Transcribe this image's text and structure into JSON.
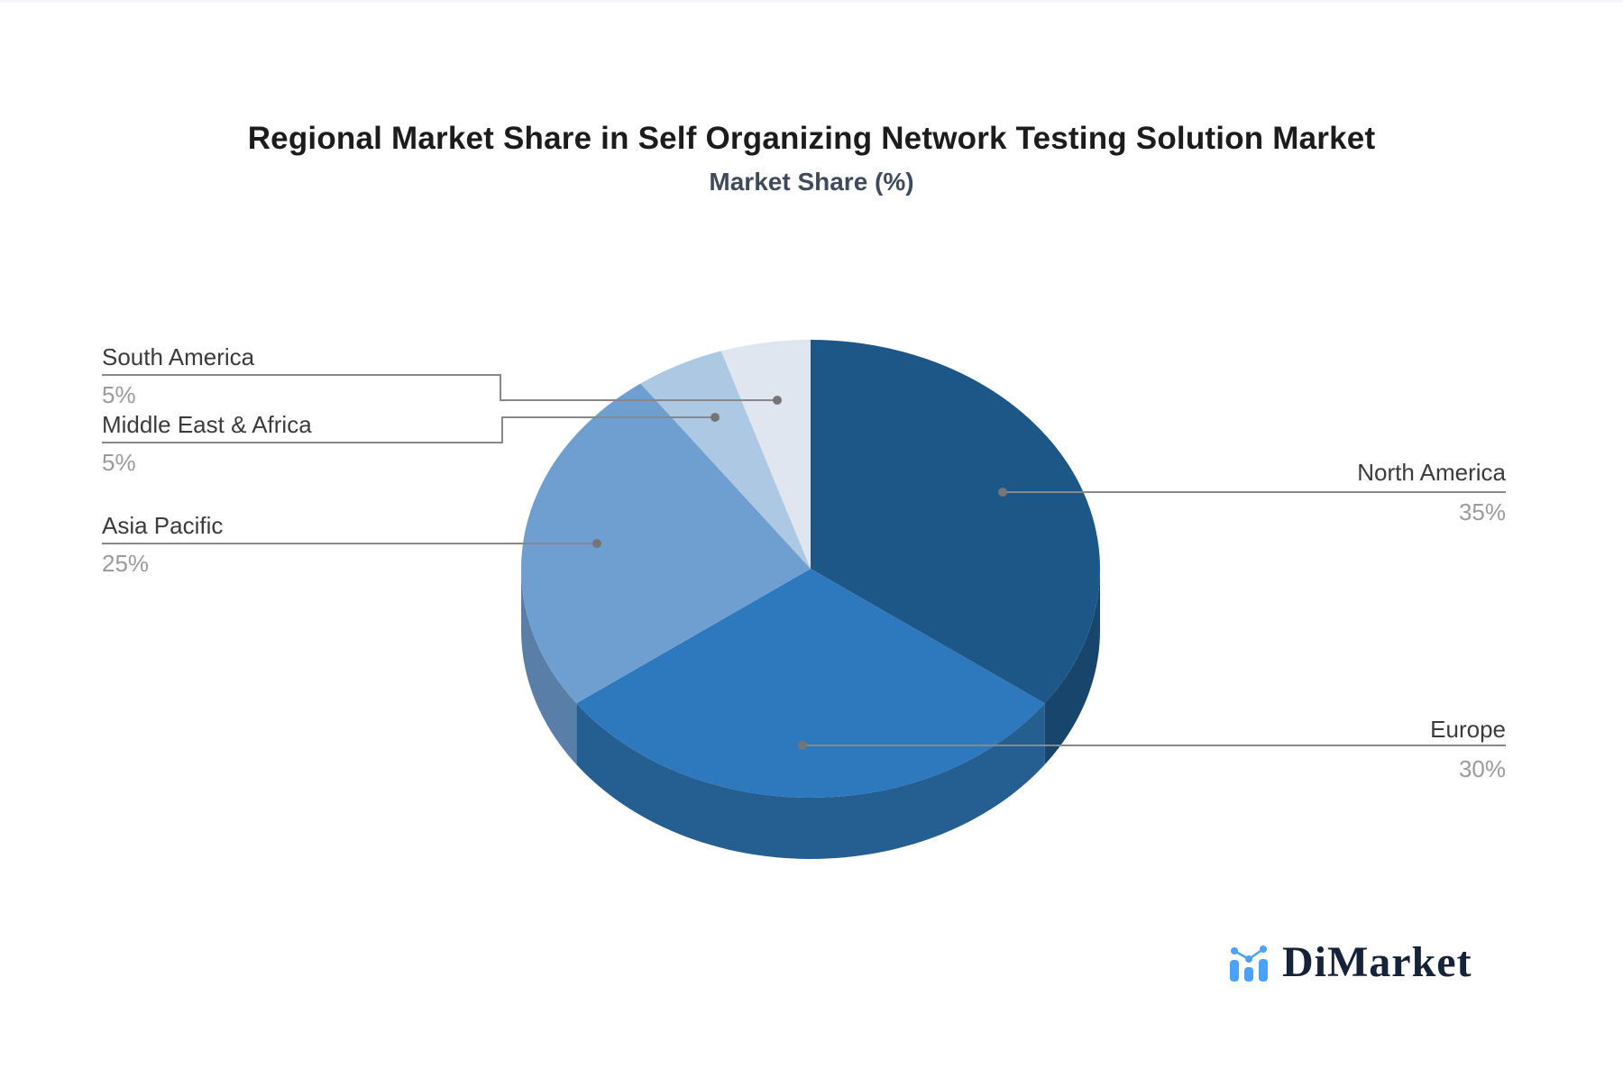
{
  "header": {
    "title": "Regional Market Share in Self Organizing Network Testing Solution Market",
    "subtitle": "Market Share (%)"
  },
  "chart_data": {
    "type": "pie",
    "style": "3d-pie",
    "title": "Regional Market Share in Self Organizing Network Testing Solution Market",
    "value_axis_label": "Market Share (%)",
    "unit": "%",
    "start_angle": "12-o-clock",
    "direction": "clockwise",
    "legend_position": "none",
    "categories": [
      "North America",
      "Europe",
      "Asia Pacific",
      "Middle East & Africa",
      "South America"
    ],
    "values": [
      35,
      30,
      25,
      5,
      5
    ],
    "slices": [
      {
        "name": "North America",
        "value": 35,
        "value_label": "35%",
        "color": "#1d5787",
        "side_color": "#17456b"
      },
      {
        "name": "Europe",
        "value": 30,
        "value_label": "30%",
        "color": "#2e79bd",
        "side_color": "#255e90"
      },
      {
        "name": "Asia Pacific",
        "value": 25,
        "value_label": "25%",
        "color": "#6f9fd1",
        "side_color": "#597fa8"
      },
      {
        "name": "Middle East & Africa",
        "value": 5,
        "value_label": "5%",
        "color": "#adc8e2",
        "side_color": "#89a2ba"
      },
      {
        "name": "South America",
        "value": 5,
        "value_label": "5%",
        "color": "#dfe6f0",
        "side_color": "#b3bcc9"
      }
    ],
    "label_line_color": "#888888",
    "label_dot_color": "#757575"
  },
  "theme": {
    "background": "#ffffff",
    "title": "#1c1c1c",
    "subtitle": "#3f4b5c",
    "text": "#3b3b3b",
    "muted": "#9b9b9b",
    "brand_text": "#152238",
    "brand_accent": "#4ca2f8"
  },
  "branding": {
    "logo_text": "DiMarket",
    "logo_icon": "bar-line-chart-icon"
  }
}
